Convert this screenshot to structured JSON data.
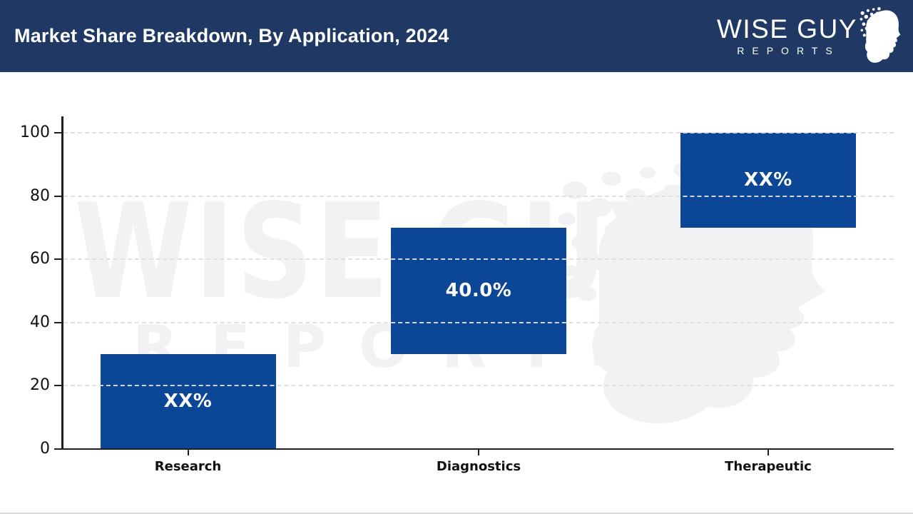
{
  "header": {
    "title": "Market Share Breakdown, By Application, 2024",
    "bg_color": "#1F3864",
    "logo": {
      "wordmark": "WISE GUY",
      "subtext": "REPORTS"
    }
  },
  "watermark": {
    "line1": "WISE GUY",
    "line2": "REPORTS"
  },
  "chart_data": {
    "type": "bar",
    "subtype": "floating-waterfall-segments",
    "title": "Market Share Breakdown, By Application, 2024",
    "categories": [
      "Research",
      "Diagnostics",
      "Therapeutic"
    ],
    "bars": [
      {
        "category": "Research",
        "from": 0,
        "to": 30,
        "label": "XX%"
      },
      {
        "category": "Diagnostics",
        "from": 30,
        "to": 70,
        "label": "40.0%"
      },
      {
        "category": "Therapeutic",
        "from": 70,
        "to": 100,
        "label": "XX%"
      }
    ],
    "ylim": [
      0,
      100
    ],
    "yticks": [
      0,
      20,
      40,
      60,
      80,
      100
    ],
    "grid": true,
    "gridline_style": "dashed",
    "legend": false,
    "bar_color": "#0B4697",
    "bar_label_color": "#FFFFFF",
    "axis_color": "#1f1f1f"
  }
}
